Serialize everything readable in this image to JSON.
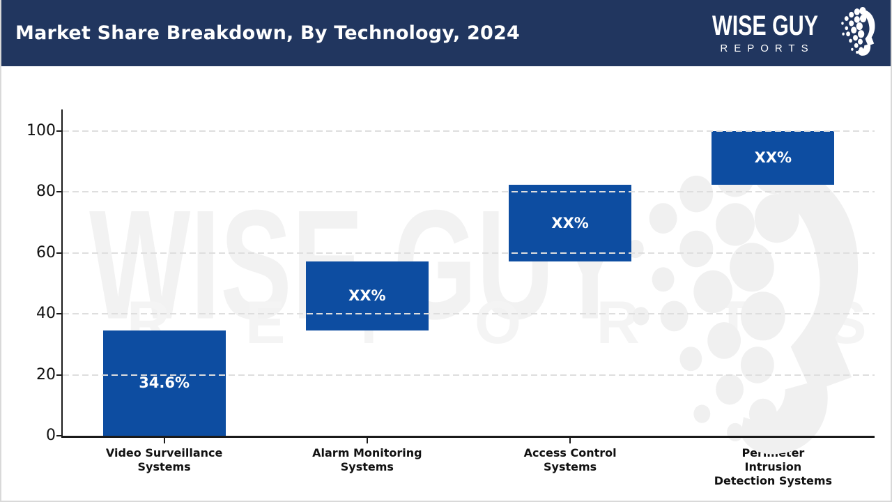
{
  "header": {
    "title": "Market Share Breakdown, By Technology, 2024",
    "logo_line1": "WISE GUY",
    "logo_line2": "REPORTS",
    "bg_color": "#21365F"
  },
  "watermark": {
    "line1": "WISE GUY",
    "line2": "R E P O R T S"
  },
  "chart_data": {
    "type": "bar",
    "subtype": "waterfall",
    "title": "Market Share Breakdown, By Technology, 2024",
    "categories": [
      "Video Surveillance\nSystems",
      "Alarm Monitoring\nSystems",
      "Access Control\nSystems",
      "Perimeter\nIntrusion\nDetection Systems"
    ],
    "series": [
      {
        "name": "Market Share (%)",
        "starts": [
          0,
          34.6,
          57.2,
          82.3
        ],
        "ends": [
          34.6,
          57.2,
          82.3,
          100
        ]
      }
    ],
    "bar_labels": [
      "34.6%",
      "XX%",
      "XX%",
      "XX%"
    ],
    "yticks": [
      0,
      20,
      40,
      60,
      80,
      100
    ],
    "ylim": [
      0,
      107
    ],
    "xlabel": "",
    "ylabel": "",
    "grid": true,
    "grid_style": "dashed",
    "legend": "none",
    "bar_color": "#0D4DA1",
    "grid_color": "#DEDEDE",
    "spine_color": "#1A1A1A",
    "watermark_color": "#F2F2F2"
  }
}
